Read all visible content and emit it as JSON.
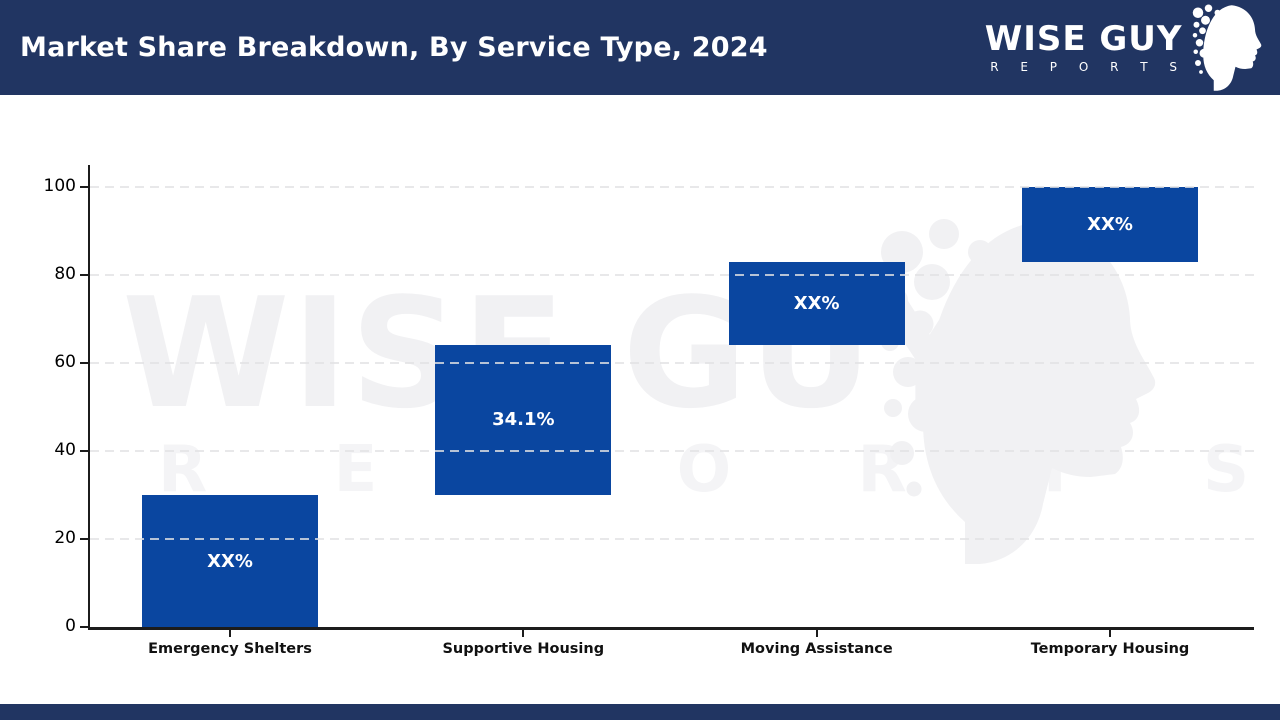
{
  "header": {
    "title": "Market Share Breakdown, By Service Type, 2024",
    "bg_color": "#213562",
    "logo": {
      "line1": "WISE GUY",
      "line2": "R E P O R T S"
    }
  },
  "watermark": {
    "line1": "WISE GUY",
    "line2": "R E P O R T S"
  },
  "footer": {
    "bg_color": "#213562"
  },
  "chart_data": {
    "type": "bar",
    "subtype": "waterfall",
    "title": "Market Share Breakdown, By Service Type, 2024",
    "categories": [
      "Emergency Shelters",
      "Supportive Housing",
      "Moving Assistance",
      "Temporary Housing"
    ],
    "segments": [
      {
        "category": "Emergency Shelters",
        "start": 0,
        "end": 30,
        "height": 30,
        "label": "XX%"
      },
      {
        "category": "Supportive Housing",
        "start": 30,
        "end": 64.1,
        "height": 34.1,
        "label": "34.1%"
      },
      {
        "category": "Moving Assistance",
        "start": 64.1,
        "end": 83,
        "height": 18.9,
        "label": "XX%"
      },
      {
        "category": "Temporary Housing",
        "start": 83,
        "end": 100,
        "height": 17,
        "label": "XX%"
      }
    ],
    "yticks": [
      0,
      20,
      40,
      60,
      80,
      100
    ],
    "ylim": [
      0,
      105
    ],
    "xlabel": "",
    "ylabel": "",
    "grid": "horizontal-dashed",
    "legend": "none",
    "bar_color": "#0a46a0",
    "bar_label_color": "#ffffff",
    "axis_color": "#1c1c1c"
  }
}
